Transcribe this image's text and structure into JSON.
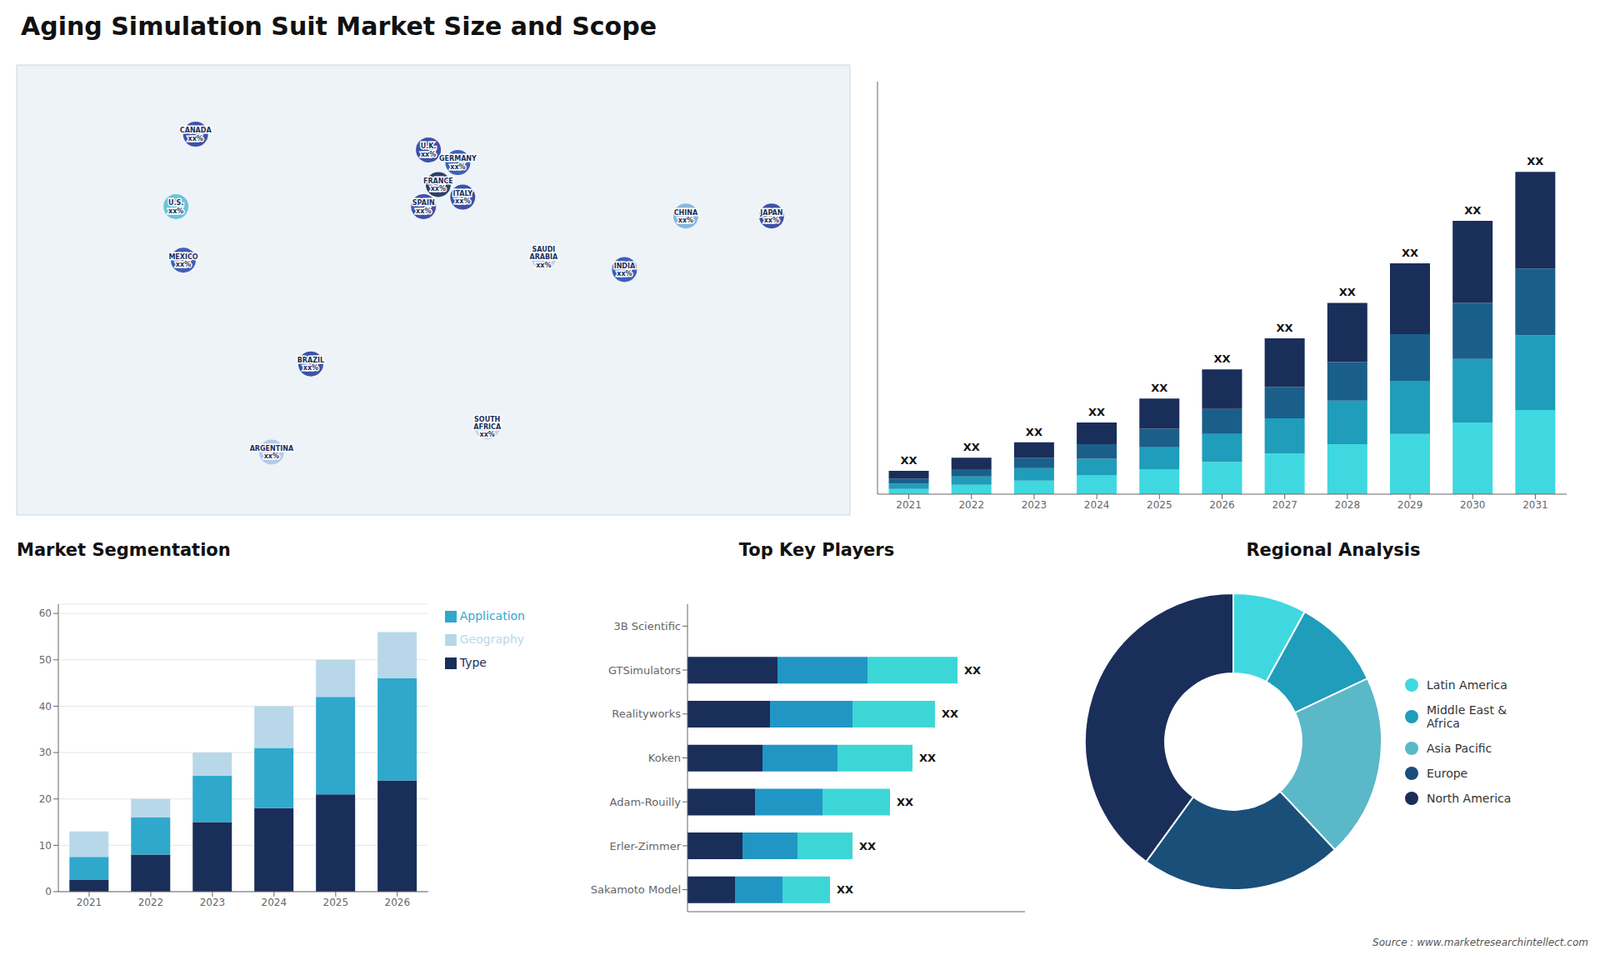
{
  "title": "Aging Simulation Suit Market Size and Scope",
  "source": "Source : www.marketresearchintellect.com",
  "chart_data": [
    {
      "type": "map",
      "xlim": [
        -170,
        170
      ],
      "ylim": [
        -58,
        85
      ],
      "tick_labels": false,
      "annotations": [
        {
          "text": "CANADA\nxx%",
          "x": -97,
          "y": 63,
          "color": "#2a3fa0"
        },
        {
          "text": "U.S.\nxx%",
          "x": -105,
          "y": 40,
          "color": "#5bbfd8"
        },
        {
          "text": "MEXICO\nxx%",
          "x": -102,
          "y": 23,
          "color": "#2a50b0"
        },
        {
          "text": "BRAZIL\nxx%",
          "x": -50,
          "y": -10,
          "color": "#2a3fa0"
        },
        {
          "text": "ARGENTINA\nxx%",
          "x": -66,
          "y": -38,
          "color": "#a8c8e8"
        },
        {
          "text": "U.K.\nxx%",
          "x": -2,
          "y": 58,
          "color": "#2a3fa0"
        },
        {
          "text": "FRANCE\nxx%",
          "x": 2,
          "y": 47,
          "color": "#1a2e5a"
        },
        {
          "text": "SPAIN\nxx%",
          "x": -4,
          "y": 40,
          "color": "#2a3fa0"
        },
        {
          "text": "GERMANY\nxx%",
          "x": 10,
          "y": 54,
          "color": "#2a50b0"
        },
        {
          "text": "ITALY\nxx%",
          "x": 12,
          "y": 43,
          "color": "#2a3fa0"
        },
        {
          "text": "SOUTH\nAFRICA\nxx%",
          "x": 22,
          "y": -30,
          "color": "#b0d0e8"
        },
        {
          "text": "SAUDI\nARABIA\nxx%",
          "x": 45,
          "y": 24,
          "color": "#b0d0e8"
        },
        {
          "text": "CHINA\nxx%",
          "x": 103,
          "y": 37,
          "color": "#7ab0d8"
        },
        {
          "text": "INDIA\nxx%",
          "x": 78,
          "y": 20,
          "color": "#2a50b0"
        },
        {
          "text": "JAPAN\nxx%",
          "x": 138,
          "y": 37,
          "color": "#2a3fa0"
        }
      ]
    },
    {
      "type": "bar",
      "stacked": true,
      "categories": [
        "2021",
        "2022",
        "2023",
        "2024",
        "2025",
        "2026",
        "2027",
        "2028",
        "2029",
        "2030",
        "2031"
      ],
      "series": [
        {
          "color": "#40d8e0",
          "values": [
            1.0,
            1.8,
            2.6,
            3.6,
            4.8,
            6.2,
            7.8,
            9.6,
            11.6,
            13.8,
            16.2
          ]
        },
        {
          "color": "#1f9dba",
          "values": [
            1.0,
            1.6,
            2.4,
            3.2,
            4.2,
            5.4,
            6.8,
            8.4,
            10.2,
            12.2,
            14.4
          ]
        },
        {
          "color": "#1a5f8a",
          "values": [
            1.0,
            1.4,
            2.0,
            2.8,
            3.6,
            4.8,
            6.0,
            7.4,
            9.0,
            10.8,
            12.8
          ]
        },
        {
          "color": "#1a2e5a",
          "values": [
            1.5,
            2.2,
            3.0,
            4.2,
            5.8,
            7.6,
            9.4,
            11.4,
            13.6,
            15.8,
            18.6
          ]
        }
      ],
      "ylim": [
        0,
        79.36
      ],
      "tick_labels": "x",
      "grid": false,
      "annotations": [
        "XX",
        "XX",
        "XX",
        "XX",
        "XX",
        "XX",
        "XX",
        "XX",
        "XX",
        "XX",
        "XX"
      ]
    },
    {
      "type": "bar",
      "title": "Market Segmentation",
      "stacked": true,
      "categories": [
        "2021",
        "2022",
        "2023",
        "2024",
        "2025",
        "2026"
      ],
      "series": [
        {
          "name": "Type",
          "color": "#1a2e5a",
          "values": [
            2.5,
            8.0,
            15.0,
            18.0,
            21.0,
            24.0
          ]
        },
        {
          "name": "Application",
          "color": "#2fa8cc",
          "values": [
            5.0,
            8.0,
            10.0,
            13.0,
            21.0,
            22.0
          ]
        },
        {
          "name": "Geography",
          "color": "#b8d8ea",
          "values": [
            5.5,
            4.0,
            5.0,
            9.0,
            8.0,
            10.0
          ]
        }
      ],
      "ylim": [
        0,
        62
      ],
      "yticks": [
        0,
        10,
        20,
        30,
        40,
        50,
        60
      ],
      "grid": true,
      "legend": "right"
    },
    {
      "type": "bar",
      "title": "Top Key Players",
      "orientation": "horizontal",
      "stacked": true,
      "categories": [
        "3B Scientific",
        "GTSimulators",
        "Realityworks",
        "Koken",
        "Adam-Rouilly",
        "Erler-Zimmer",
        "Sakamoto Model"
      ],
      "series": [
        {
          "color": "#1a2e5a",
          "values": [
            0,
            24,
            22,
            20,
            18,
            14.666666666666666,
            12.666666666666666
          ]
        },
        {
          "color": "#2196c4",
          "values": [
            0,
            24,
            22,
            20,
            18,
            14.666666666666666,
            12.666666666666666
          ]
        },
        {
          "color": "#3dd6d6",
          "values": [
            0,
            24,
            22,
            20,
            18,
            14.666666666666666,
            12.666666666666666
          ]
        }
      ],
      "xlim": [
        0,
        90
      ],
      "tick_labels": "y",
      "grid": false,
      "annotations": [
        null,
        "XX",
        "XX",
        "XX",
        "XX",
        "XX",
        "XX"
      ]
    },
    {
      "type": "pie",
      "title": "Regional Analysis",
      "categories": [
        "Latin America",
        "Middle East &\nAfrica",
        "Asia Pacific",
        "Europe",
        "North America"
      ],
      "values": [
        8,
        10,
        20,
        22,
        40
      ],
      "colors": [
        "#40d8e0",
        "#1f9dba",
        "#5ab8c8",
        "#1a4f7a",
        "#1a2e5a"
      ],
      "legend": "right"
    }
  ]
}
